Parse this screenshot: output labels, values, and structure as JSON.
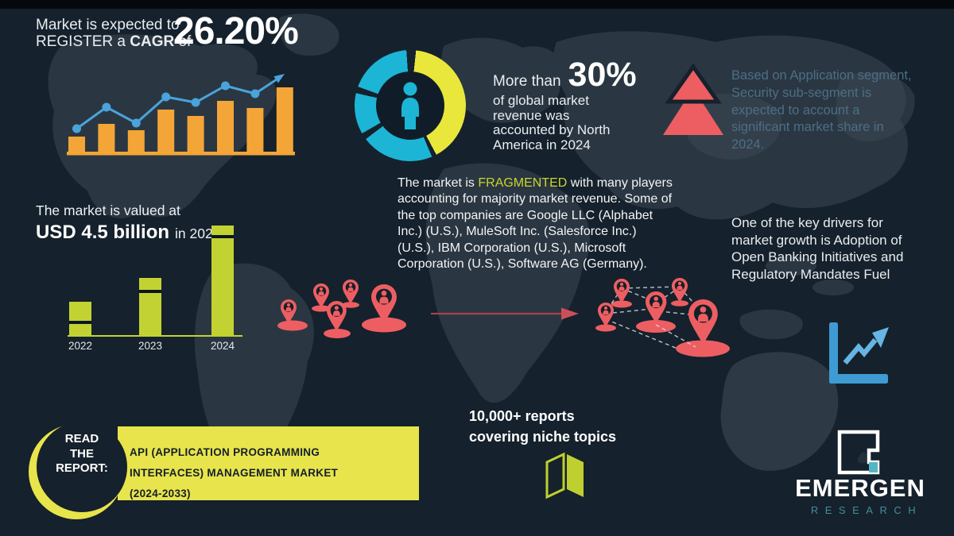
{
  "colors": {
    "background": "#15212c",
    "map": "#2d3a45",
    "orange": "#f4a537",
    "line_blue": "#4aa3db",
    "cyan": "#1cb5d6",
    "donut_yellow": "#eae73c",
    "green": "#c3d233",
    "coral": "#ed5e62",
    "banner_yellow": "#e8e44b",
    "slate_text": "#4c6e86",
    "icon_blue": "#3e9bd3",
    "brand_teal": "#418d9c"
  },
  "cagr": {
    "line1": "Market is expected to",
    "line2_pre": "REGISTER a ",
    "line2_bold": "CAGR",
    "line2_post": " of",
    "value": "26.20%"
  },
  "north_america": {
    "prefix": "More than",
    "value": "30%",
    "description": "of global market revenue was accounted by North America in 2024"
  },
  "security": {
    "text": "Based on Application segment, Security sub-segment is expected to account a significant market share in 2024."
  },
  "valuation": {
    "line1": "The market is valued at",
    "value": "USD 4.5 billion",
    "suffix": "in 2024"
  },
  "fragmented": {
    "pre": "The market is ",
    "highlight": "FRAGMENTED",
    "post": " with many players accounting for majority market revenue. Some of the top companies are Google LLC (Alphabet Inc.) (U.S.), MuleSoft Inc. (Salesforce Inc.) (U.S.), IBM Corporation (U.S.), Microsoft Corporation (U.S.), Software AG (Germany)."
  },
  "driver": {
    "text": "One of the key drivers for market growth is Adoption of Open Banking Initiatives and Regulatory Mandates Fuel"
  },
  "reports": {
    "stat": "10,000+ reports covering niche topics"
  },
  "report_banner": {
    "label": "READ THE REPORT:",
    "title": "API (APPLICATION PROGRAMMING INTERFACES) MANAGEMENT MARKET (2024-2033)"
  },
  "brand": {
    "name": "EMERGEN",
    "sub": "RESEARCH"
  },
  "chart_data": [
    {
      "type": "bar",
      "name": "cagr-growth-chart",
      "title": "Stylized market growth chart (CAGR 26.20%)",
      "values": [
        19,
        35,
        27,
        53,
        45,
        64,
        55,
        81
      ],
      "line": [
        29,
        56,
        36,
        69,
        62,
        83,
        73
      ],
      "bar_color": "#f4a537",
      "line_color": "#4aa3db",
      "note": "decorative trend chart, relative heights, no axis labels; blue trend line ends in an up-right arrow"
    },
    {
      "type": "bar",
      "name": "market-value-chart",
      "categories": [
        "2022",
        "2023",
        "2024"
      ],
      "values": [
        42,
        72,
        138
      ],
      "stripe_offsets": [
        24,
        15,
        12
      ],
      "bar_color": "#c3d233",
      "note": "relative bar heights in px; 2024 bar corresponds to USD 4.5 billion market value"
    },
    {
      "type": "donut",
      "name": "north-america-share-donut",
      "title": "More than 30% of global market revenue accounted by North America in 2024",
      "segments": [
        {
          "label": "North America",
          "color": "#eae73c",
          "from": 6,
          "to": 152
        },
        {
          "label": "Rest of world",
          "color": "#1cb5d6",
          "from": 157,
          "to": 233
        },
        {
          "label": "Rest of world",
          "color": "#1cb5d6",
          "from": 240,
          "to": 283
        },
        {
          "label": "Rest of world",
          "color": "#1cb5d6",
          "from": 290,
          "to": 356
        }
      ]
    }
  ]
}
